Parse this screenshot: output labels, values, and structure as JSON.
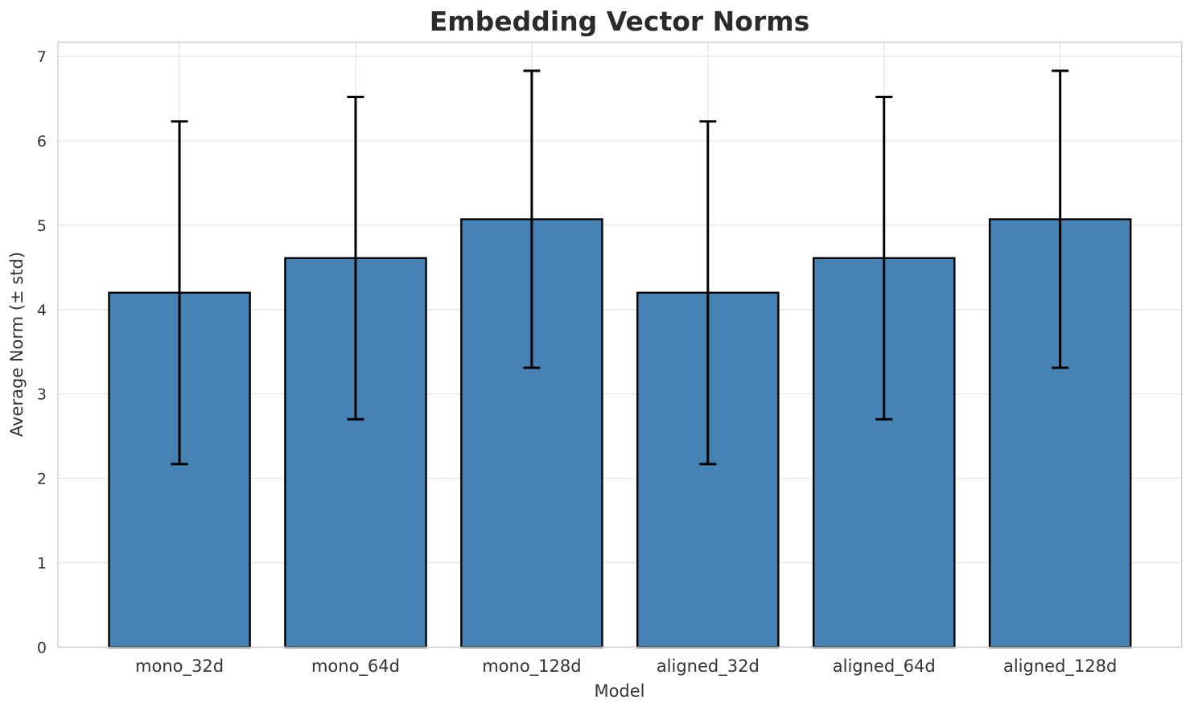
{
  "chart_data": {
    "type": "bar",
    "title": "Embedding Vector Norms",
    "xlabel": "Model",
    "ylabel": "Average Norm (± std)",
    "categories": [
      "mono_32d",
      "mono_64d",
      "mono_128d",
      "aligned_32d",
      "aligned_64d",
      "aligned_128d"
    ],
    "series": [
      {
        "name": "Average Norm",
        "values": [
          4.2,
          4.61,
          5.07,
          4.2,
          4.61,
          5.07
        ],
        "errors": [
          2.03,
          1.91,
          1.76,
          2.03,
          1.91,
          1.76
        ]
      }
    ],
    "yticks": [
      0,
      1,
      2,
      3,
      4,
      5,
      6,
      7
    ],
    "ylim": [
      0,
      7.17
    ],
    "bar_width_fraction": 0.8,
    "grid": true,
    "legend_position": "none",
    "colors": {
      "bar_fill": "#4682b4",
      "bar_edge": "#000000",
      "error_bar": "#000000",
      "grid_line": "#e5e5e5",
      "spine": "#cccccc",
      "tick_text": "#333333",
      "title_text": "#2b2b2b",
      "background": "#ffffff"
    }
  }
}
